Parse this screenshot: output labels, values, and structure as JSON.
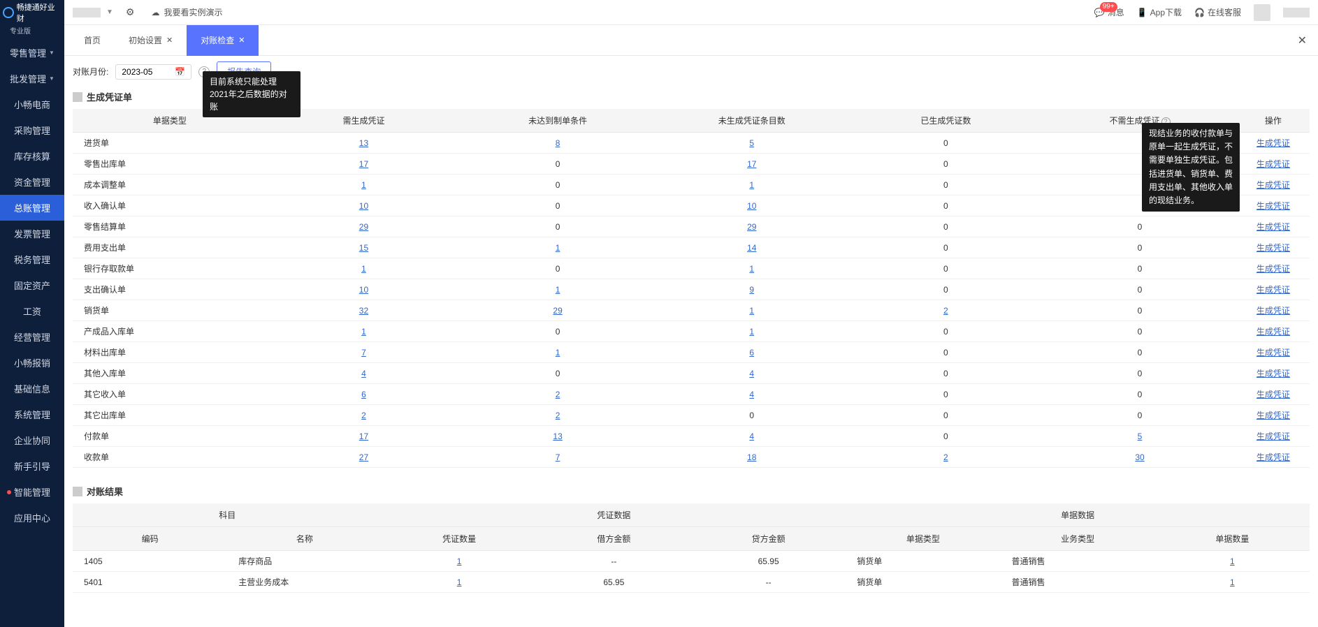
{
  "logo_text": "畅捷通好业财",
  "edition": "专业版",
  "demo_text": "我要看实例演示",
  "topbar_right": {
    "msg": "消息",
    "badge": "99+",
    "app": "App下载",
    "service": "在线客服"
  },
  "sidebar": [
    {
      "label": "零售管理",
      "arrow": true
    },
    {
      "label": "批发管理",
      "arrow": true
    },
    {
      "label": "小畅电商"
    },
    {
      "label": "采购管理"
    },
    {
      "label": "库存核算"
    },
    {
      "label": "资金管理"
    },
    {
      "label": "总账管理",
      "active": true
    },
    {
      "label": "发票管理"
    },
    {
      "label": "税务管理"
    },
    {
      "label": "固定资产"
    },
    {
      "label": "工资"
    },
    {
      "label": "经营管理"
    },
    {
      "label": "小畅报销"
    },
    {
      "label": "基础信息"
    },
    {
      "label": "系统管理"
    },
    {
      "label": "企业协同"
    },
    {
      "label": "新手引导"
    },
    {
      "label": "智能管理",
      "dot": true
    },
    {
      "label": "应用中心"
    }
  ],
  "tabs": [
    {
      "label": "首页"
    },
    {
      "label": "初始设置",
      "closable": true
    },
    {
      "label": "对账检查",
      "closable": true,
      "active": true
    }
  ],
  "toolbar": {
    "label": "对账月份:",
    "date": "2023-05",
    "report_btn": "报告查询"
  },
  "tooltip1": "目前系统只能处理2021年之后数据的对账",
  "tooltip2": "现结业务的收付款单与原单一起生成凭证，不需要单独生成凭证。包括进货单、销货单、费用支出单、其他收入单的现结业务。",
  "section1_title": "生成凭证单",
  "t1_headers": [
    "单据类型",
    "需生成凭证",
    "未达到制单条件",
    "未生成凭证条目数",
    "已生成凭证数",
    "不需生成凭证",
    "操作"
  ],
  "t1_action": "生成凭证",
  "t1_rows": [
    {
      "name": "进货单",
      "c1": "13",
      "c2": "8",
      "c3": "5",
      "c4": "0"
    },
    {
      "name": "零售出库单",
      "c1": "17",
      "c2": "0",
      "c3": "17",
      "c4": "0"
    },
    {
      "name": "成本调整单",
      "c1": "1",
      "c2": "0",
      "c3": "1",
      "c4": "0"
    },
    {
      "name": "收入确认单",
      "c1": "10",
      "c2": "0",
      "c3": "10",
      "c4": "0"
    },
    {
      "name": "零售结算单",
      "c1": "29",
      "c2": "0",
      "c3": "29",
      "c4": "0",
      "c5": "0"
    },
    {
      "name": "费用支出单",
      "c1": "15",
      "c2": "1",
      "c3": "14",
      "c4": "0",
      "c5": "0"
    },
    {
      "name": "银行存取款单",
      "c1": "1",
      "c2": "0",
      "c3": "1",
      "c4": "0",
      "c5": "0"
    },
    {
      "name": "支出确认单",
      "c1": "10",
      "c2": "1",
      "c3": "9",
      "c4": "0",
      "c5": "0"
    },
    {
      "name": "销货单",
      "c1": "32",
      "c2": "29",
      "c3": "1",
      "c4": "2",
      "c5": "0"
    },
    {
      "name": "产成品入库单",
      "c1": "1",
      "c2": "0",
      "c3": "1",
      "c4": "0",
      "c5": "0"
    },
    {
      "name": "材料出库单",
      "c1": "7",
      "c2": "1",
      "c3": "6",
      "c4": "0",
      "c5": "0"
    },
    {
      "name": "其他入库单",
      "c1": "4",
      "c2": "0",
      "c3": "4",
      "c4": "0",
      "c5": "0"
    },
    {
      "name": "其它收入单",
      "c1": "6",
      "c2": "2",
      "c3": "4",
      "c4": "0",
      "c5": "0"
    },
    {
      "name": "其它出库单",
      "c1": "2",
      "c2": "2",
      "c3": "0",
      "c4": "0",
      "c5": "0"
    },
    {
      "name": "付款单",
      "c1": "17",
      "c2": "13",
      "c3": "4",
      "c4": "0",
      "c5": "5"
    },
    {
      "name": "收款单",
      "c1": "27",
      "c2": "7",
      "c3": "18",
      "c4": "2",
      "c5": "30"
    }
  ],
  "section2_title": "对账结果",
  "t2_top_headers": [
    "科目",
    "凭证数据",
    "单据数据"
  ],
  "t2_headers": [
    "编码",
    "名称",
    "凭证数量",
    "借方金额",
    "贷方金额",
    "单据类型",
    "业务类型",
    "单据数量"
  ],
  "t2_rows": [
    {
      "code": "1405",
      "name": "库存商品",
      "qty": "1",
      "debit": "--",
      "credit": "65.95",
      "doctype": "销货单",
      "biz": "普通销售",
      "docqty": "1"
    },
    {
      "code": "5401",
      "name": "主营业务成本",
      "qty": "1",
      "debit": "65.95",
      "credit": "--",
      "doctype": "销货单",
      "biz": "普通销售",
      "docqty": "1"
    }
  ]
}
